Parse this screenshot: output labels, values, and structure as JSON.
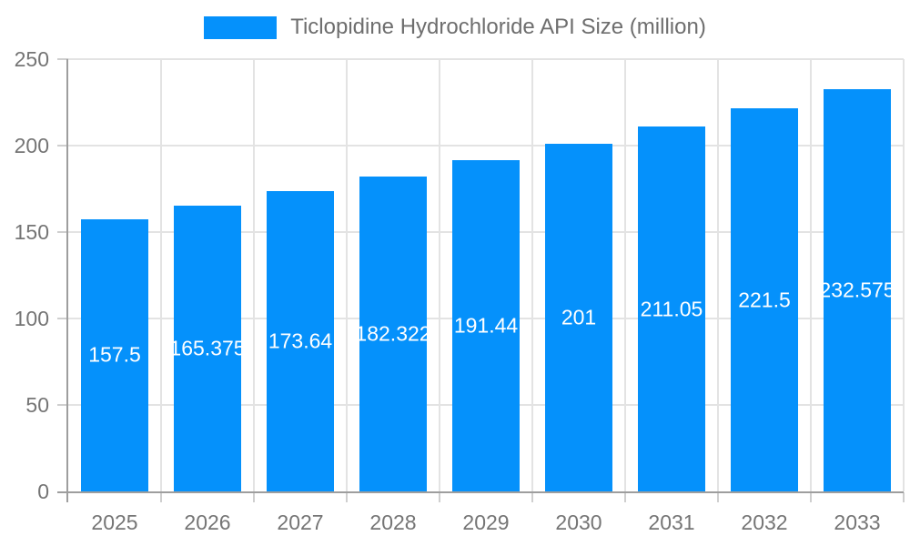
{
  "chart_data": {
    "type": "bar",
    "title": "Ticlopidine Hydrochloride API Size (million)",
    "categories": [
      "2025",
      "2026",
      "2027",
      "2028",
      "2029",
      "2030",
      "2031",
      "2032",
      "2033"
    ],
    "values": [
      157.5,
      165.375,
      173.64,
      182.322,
      191.44,
      201,
      211.05,
      221.5,
      232.575
    ],
    "xlabel": "",
    "ylabel": "",
    "ylim": [
      0,
      250
    ],
    "yticks": [
      0,
      50,
      100,
      150,
      200,
      250
    ],
    "grid": true,
    "legend_position": "top-center",
    "colors": {
      "bar": "#0591fb",
      "grid_line": "#e3e3e3",
      "axis_line": "#9e9e9e",
      "tick_mark": "#cfcfcf",
      "tick_text": "#757575",
      "legend_text": "#6e6e6e",
      "bar_label_text": "#ffffff",
      "background": "#ffffff"
    }
  }
}
